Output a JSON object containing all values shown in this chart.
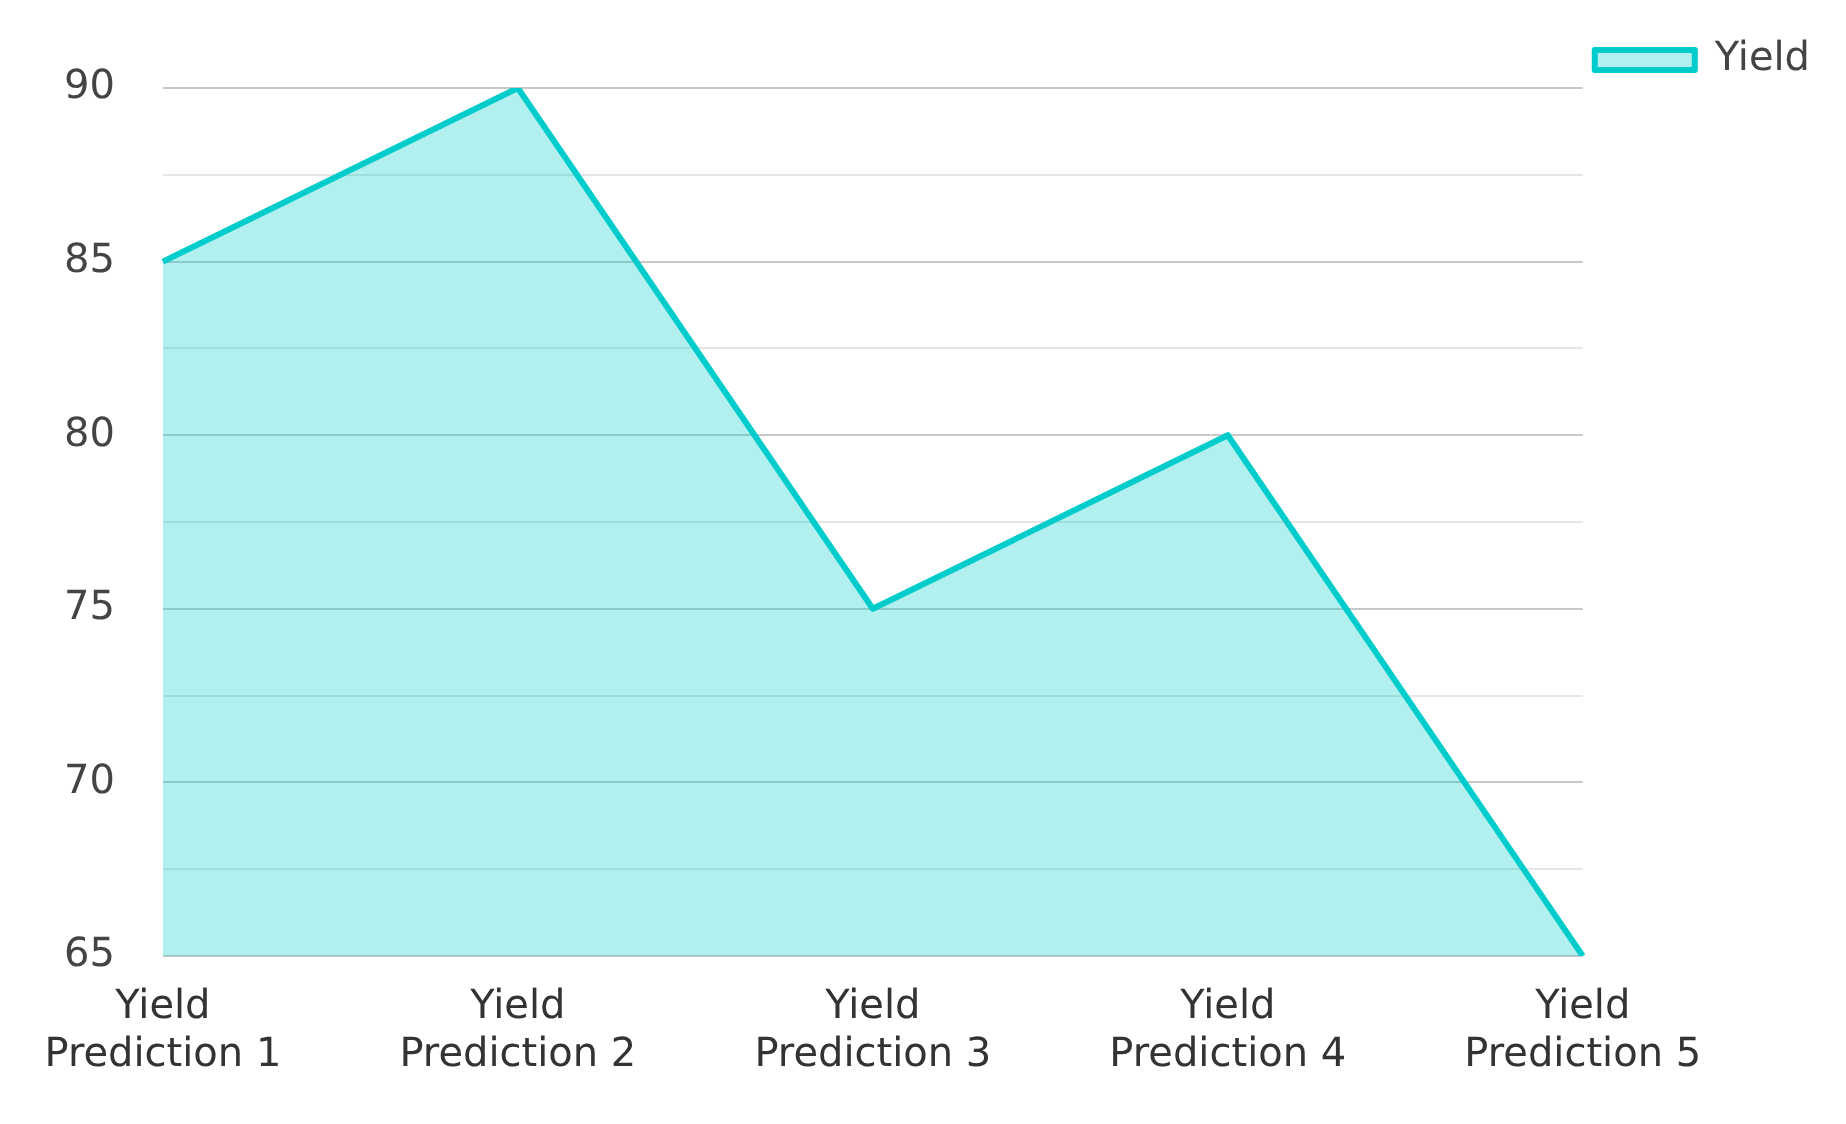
{
  "chart_data": {
    "type": "area",
    "categories": [
      "Yield Prediction 1",
      "Yield Prediction 2",
      "Yield Prediction 3",
      "Yield Prediction 4",
      "Yield Prediction 5"
    ],
    "series": [
      {
        "name": "Yield",
        "color": "#00cccc",
        "values": [
          85,
          90,
          75,
          80,
          65
        ]
      }
    ],
    "ylim": [
      65,
      90
    ],
    "yticks": [
      65,
      {
        "value": 67.5,
        "label": null
      },
      70,
      {
        "value": 72.5,
        "label": null
      },
      75,
      {
        "value": 77.5,
        "label": null
      },
      80,
      {
        "value": 82.5,
        "label": null
      },
      85,
      {
        "value": 87.5,
        "label": null
      },
      90
    ],
    "grid": "y",
    "legend": "top right"
  }
}
